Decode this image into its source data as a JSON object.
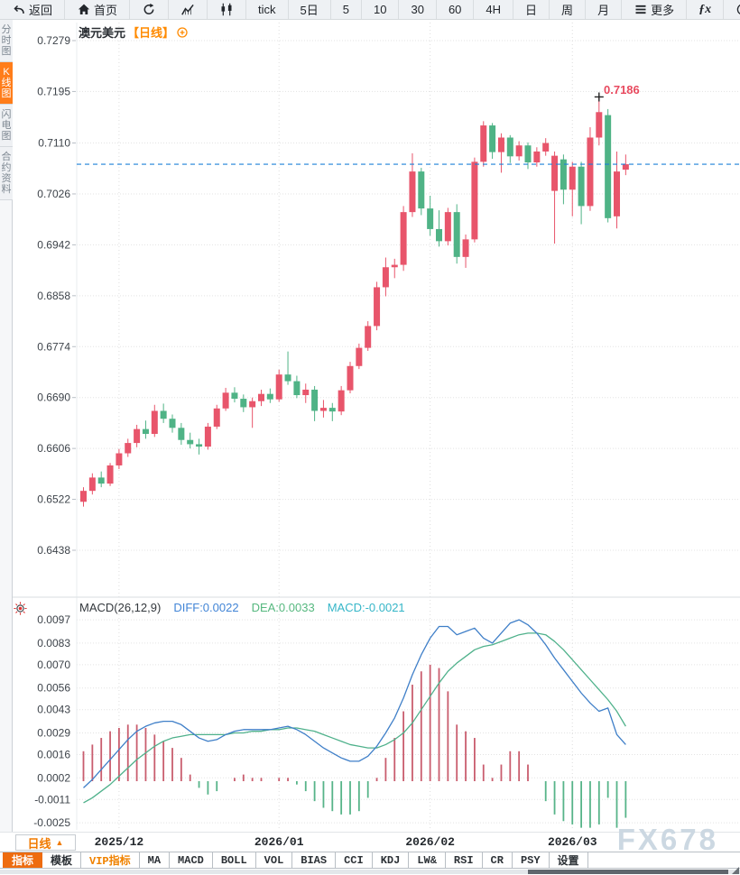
{
  "toolbar": {
    "items": [
      {
        "name": "back-button",
        "icon": "back-icon",
        "label": "返回"
      },
      {
        "name": "home-button",
        "icon": "home-icon",
        "label": "首页"
      },
      {
        "name": "refresh-button",
        "icon": "refresh-icon",
        "label": ""
      },
      {
        "name": "area-chart-button",
        "icon": "area-chart-icon",
        "label": ""
      },
      {
        "name": "candlestick-chart-button",
        "icon": "candlestick-icon",
        "label": ""
      },
      {
        "name": "period-tick-button",
        "icon": "",
        "label": "tick"
      },
      {
        "name": "period-5d-button",
        "icon": "",
        "label": "5日"
      },
      {
        "name": "period-5-button",
        "icon": "",
        "label": "5"
      },
      {
        "name": "period-10-button",
        "icon": "",
        "label": "10"
      },
      {
        "name": "period-30-button",
        "icon": "",
        "label": "30"
      },
      {
        "name": "period-60-button",
        "icon": "",
        "label": "60"
      },
      {
        "name": "period-4h-button",
        "icon": "",
        "label": "4H"
      },
      {
        "name": "period-day-button",
        "icon": "",
        "label": "日"
      },
      {
        "name": "period-week-button",
        "icon": "",
        "label": "周"
      },
      {
        "name": "period-month-button",
        "icon": "",
        "label": "月"
      },
      {
        "name": "more-button",
        "icon": "menu-icon",
        "label": "更多"
      },
      {
        "name": "fx-indicator-button",
        "icon": "fx-icon",
        "label": ""
      },
      {
        "name": "zoom-out-button",
        "icon": "zoom-out-icon",
        "label": ""
      },
      {
        "name": "zoom-in-button",
        "icon": "zoom-in-icon",
        "label": ""
      }
    ]
  },
  "sidebar": {
    "items": [
      {
        "name": "sidebar-item-time-chart",
        "label": "分时图",
        "active": false
      },
      {
        "name": "sidebar-item-kline-chart",
        "label": "K线图",
        "active": true
      },
      {
        "name": "sidebar-item-lightning-chart",
        "label": "闪电图",
        "active": false
      },
      {
        "name": "sidebar-item-contract-info",
        "label": "合约资料",
        "active": false
      }
    ]
  },
  "title": {
    "symbol": "澳元美元",
    "period_tag": "【日线】",
    "plus_icon": "plus-circle-icon"
  },
  "price_marker": {
    "label": "0.7186"
  },
  "macd_header": {
    "title": "MACD(26,12,9)",
    "diff_label": "DIFF:0.0022",
    "dea_label": "DEA:0.0033",
    "macd_label": "MACD:-0.0021"
  },
  "bottom": {
    "period_button": {
      "label": "日线",
      "arrow": "▲"
    },
    "tabs": [
      {
        "name": "tab-indicators",
        "label": "指标",
        "active": true,
        "vip": false
      },
      {
        "name": "tab-templates",
        "label": "模板",
        "active": false,
        "vip": false
      },
      {
        "name": "tab-vip-indicators",
        "label": "VIP指标",
        "active": false,
        "vip": true
      },
      {
        "name": "tab-ma",
        "label": "MA",
        "active": false,
        "vip": false
      },
      {
        "name": "tab-macd",
        "label": "MACD",
        "active": false,
        "vip": false
      },
      {
        "name": "tab-boll",
        "label": "BOLL",
        "active": false,
        "vip": false
      },
      {
        "name": "tab-vol",
        "label": "VOL",
        "active": false,
        "vip": false
      },
      {
        "name": "tab-bias",
        "label": "BIAS",
        "active": false,
        "vip": false
      },
      {
        "name": "tab-cci",
        "label": "CCI",
        "active": false,
        "vip": false
      },
      {
        "name": "tab-kdj",
        "label": "KDJ",
        "active": false,
        "vip": false
      },
      {
        "name": "tab-lw",
        "label": "LW&",
        "active": false,
        "vip": false
      },
      {
        "name": "tab-rsi",
        "label": "RSI",
        "active": false,
        "vip": false
      },
      {
        "name": "tab-cr",
        "label": "CR",
        "active": false,
        "vip": false
      },
      {
        "name": "tab-psy",
        "label": "PSY",
        "active": false,
        "vip": false
      },
      {
        "name": "tab-settings",
        "label": "设置",
        "active": false,
        "vip": false
      }
    ]
  },
  "watermark": "FX678",
  "colors": {
    "up": "#e8556b",
    "down": "#4fb386",
    "hist_up": "#c95d6e",
    "hist_down": "#57b489",
    "diff_line": "#3f7fc8",
    "dea_line": "#4fb18b",
    "last_price_line": "#1e80d8",
    "accent_orange": "#ff7d1a",
    "grid": "#e3e3e3",
    "axis_text": "#3d434a",
    "marker_red": "#e84a5f"
  },
  "chart_data": {
    "type": "candlestick+macd",
    "panels": [
      {
        "type": "candlestick",
        "title": "澳元美元【日线】",
        "y_ticks": [
          "0.7279",
          "0.7195",
          "0.7110",
          "0.7026",
          "0.6942",
          "0.6858",
          "0.6774",
          "0.6690",
          "0.6606",
          "0.6522",
          "0.6438"
        ],
        "x_ticks": [
          {
            "label": "2025/12",
            "index": 4
          },
          {
            "label": "2026/01",
            "index": 22
          },
          {
            "label": "2026/02",
            "index": 39
          },
          {
            "label": "2026/03",
            "index": 55
          }
        ],
        "last_price": 0.7075,
        "high_marker": {
          "index": 58,
          "price": 0.7186,
          "label": "0.7186"
        },
        "candles": [
          [
            0.6518,
            0.6542,
            0.651,
            0.6536
          ],
          [
            0.6536,
            0.6565,
            0.653,
            0.6558
          ],
          [
            0.6558,
            0.6568,
            0.6542,
            0.6548
          ],
          [
            0.6548,
            0.6582,
            0.6544,
            0.6578
          ],
          [
            0.6578,
            0.6605,
            0.6572,
            0.6598
          ],
          [
            0.6598,
            0.6622,
            0.6592,
            0.6615
          ],
          [
            0.6615,
            0.6645,
            0.6608,
            0.6638
          ],
          [
            0.6638,
            0.6652,
            0.6622,
            0.663
          ],
          [
            0.663,
            0.6678,
            0.6625,
            0.6668
          ],
          [
            0.6668,
            0.668,
            0.6648,
            0.6655
          ],
          [
            0.6655,
            0.6662,
            0.6632,
            0.664
          ],
          [
            0.664,
            0.6648,
            0.6612,
            0.662
          ],
          [
            0.662,
            0.6632,
            0.6606,
            0.6613
          ],
          [
            0.6613,
            0.6622,
            0.6596,
            0.6609
          ],
          [
            0.6609,
            0.6648,
            0.6604,
            0.6642
          ],
          [
            0.6642,
            0.6678,
            0.6638,
            0.6672
          ],
          [
            0.6672,
            0.6706,
            0.6668,
            0.6698
          ],
          [
            0.6698,
            0.6707,
            0.6682,
            0.6688
          ],
          [
            0.6688,
            0.6695,
            0.6666,
            0.6674
          ],
          [
            0.6674,
            0.669,
            0.664,
            0.6684
          ],
          [
            0.6684,
            0.6703,
            0.6676,
            0.6696
          ],
          [
            0.6696,
            0.6705,
            0.6681,
            0.6687
          ],
          [
            0.6687,
            0.6736,
            0.6683,
            0.6728
          ],
          [
            0.6728,
            0.6766,
            0.6711,
            0.6717
          ],
          [
            0.6717,
            0.6726,
            0.6689,
            0.6694
          ],
          [
            0.6694,
            0.6713,
            0.6681,
            0.6703
          ],
          [
            0.6703,
            0.6709,
            0.6651,
            0.6668
          ],
          [
            0.6668,
            0.6686,
            0.6657,
            0.6673
          ],
          [
            0.6673,
            0.6681,
            0.6651,
            0.6667
          ],
          [
            0.6667,
            0.6709,
            0.6661,
            0.6702
          ],
          [
            0.6702,
            0.6749,
            0.6697,
            0.6742
          ],
          [
            0.6742,
            0.6779,
            0.6737,
            0.6772
          ],
          [
            0.6772,
            0.6816,
            0.6767,
            0.6808
          ],
          [
            0.6808,
            0.6881,
            0.6801,
            0.6872
          ],
          [
            0.6872,
            0.6921,
            0.6857,
            0.6905
          ],
          [
            0.6905,
            0.6919,
            0.6887,
            0.6909
          ],
          [
            0.6909,
            0.7006,
            0.6899,
            0.6996
          ],
          [
            0.6996,
            0.7093,
            0.6988,
            0.7063
          ],
          [
            0.7063,
            0.7069,
            0.6991,
            0.7002
          ],
          [
            0.7002,
            0.7023,
            0.6957,
            0.6968
          ],
          [
            0.6968,
            0.6999,
            0.6939,
            0.6948
          ],
          [
            0.6948,
            0.7003,
            0.6941,
            0.6996
          ],
          [
            0.6996,
            0.7009,
            0.6911,
            0.6922
          ],
          [
            0.6922,
            0.6959,
            0.6904,
            0.6951
          ],
          [
            0.6951,
            0.7086,
            0.6946,
            0.7079
          ],
          [
            0.7079,
            0.7146,
            0.7071,
            0.7139
          ],
          [
            0.7139,
            0.7143,
            0.7084,
            0.7095
          ],
          [
            0.7095,
            0.7126,
            0.7061,
            0.7119
          ],
          [
            0.7119,
            0.7123,
            0.7077,
            0.7088
          ],
          [
            0.7088,
            0.7113,
            0.7081,
            0.7106
          ],
          [
            0.7106,
            0.7111,
            0.7067,
            0.7078
          ],
          [
            0.7078,
            0.7103,
            0.7071,
            0.7096
          ],
          [
            0.7096,
            0.7118,
            0.7089,
            0.711
          ],
          [
            0.7031,
            0.7096,
            0.6944,
            0.7089
          ],
          [
            0.7083,
            0.7091,
            0.7009,
            0.7033
          ],
          [
            0.7033,
            0.7079,
            0.6989,
            0.7071
          ],
          [
            0.7071,
            0.7079,
            0.6976,
            0.7006
          ],
          [
            0.7006,
            0.7136,
            0.6998,
            0.7119
          ],
          [
            0.7119,
            0.7186,
            0.7106,
            0.7161
          ],
          [
            0.7156,
            0.7166,
            0.6979,
            0.6986
          ],
          [
            0.6989,
            0.7096,
            0.6969,
            0.7063
          ],
          [
            0.7066,
            0.7091,
            0.7057,
            0.7075
          ]
        ]
      },
      {
        "type": "macd",
        "params": "(26,12,9)",
        "y_ticks": [
          "0.0097",
          "0.0083",
          "0.0070",
          "0.0056",
          "0.0043",
          "0.0029",
          "0.0016",
          "0.0002",
          "-0.0011",
          "-0.0025"
        ],
        "histogram_rule": "2*(diff-dea)",
        "diff": [
          -0.0004,
          0.0001,
          0.0007,
          0.0013,
          0.0019,
          0.0025,
          0.003,
          0.0033,
          0.0035,
          0.0036,
          0.0036,
          0.0034,
          0.003,
          0.0026,
          0.0024,
          0.0025,
          0.0028,
          0.003,
          0.0031,
          0.0031,
          0.0031,
          0.0031,
          0.0032,
          0.0033,
          0.0031,
          0.0028,
          0.0024,
          0.002,
          0.0017,
          0.0014,
          0.0012,
          0.0012,
          0.0015,
          0.0021,
          0.0029,
          0.0038,
          0.005,
          0.0064,
          0.0076,
          0.0086,
          0.0093,
          0.0093,
          0.0088,
          0.009,
          0.0092,
          0.0086,
          0.0083,
          0.0089,
          0.0095,
          0.0097,
          0.0094,
          0.0089,
          0.0082,
          0.0074,
          0.0067,
          0.006,
          0.0053,
          0.0047,
          0.0042,
          0.0044,
          0.0028,
          0.0022
        ],
        "dea": [
          -0.0013,
          -0.001,
          -0.0006,
          -0.0002,
          0.0003,
          0.0008,
          0.0013,
          0.0017,
          0.0021,
          0.0024,
          0.0026,
          0.0027,
          0.0028,
          0.0028,
          0.0028,
          0.0028,
          0.0028,
          0.0029,
          0.0029,
          0.003,
          0.003,
          0.0031,
          0.0031,
          0.0032,
          0.0032,
          0.0031,
          0.003,
          0.0028,
          0.0026,
          0.0024,
          0.0022,
          0.0021,
          0.002,
          0.002,
          0.0022,
          0.0025,
          0.0029,
          0.0035,
          0.0043,
          0.0051,
          0.0059,
          0.0066,
          0.0071,
          0.0075,
          0.0079,
          0.0081,
          0.0082,
          0.0084,
          0.0086,
          0.0088,
          0.0089,
          0.0089,
          0.0088,
          0.0084,
          0.0079,
          0.0073,
          0.0067,
          0.0061,
          0.0055,
          0.0049,
          0.0042,
          0.0033
        ]
      }
    ]
  }
}
